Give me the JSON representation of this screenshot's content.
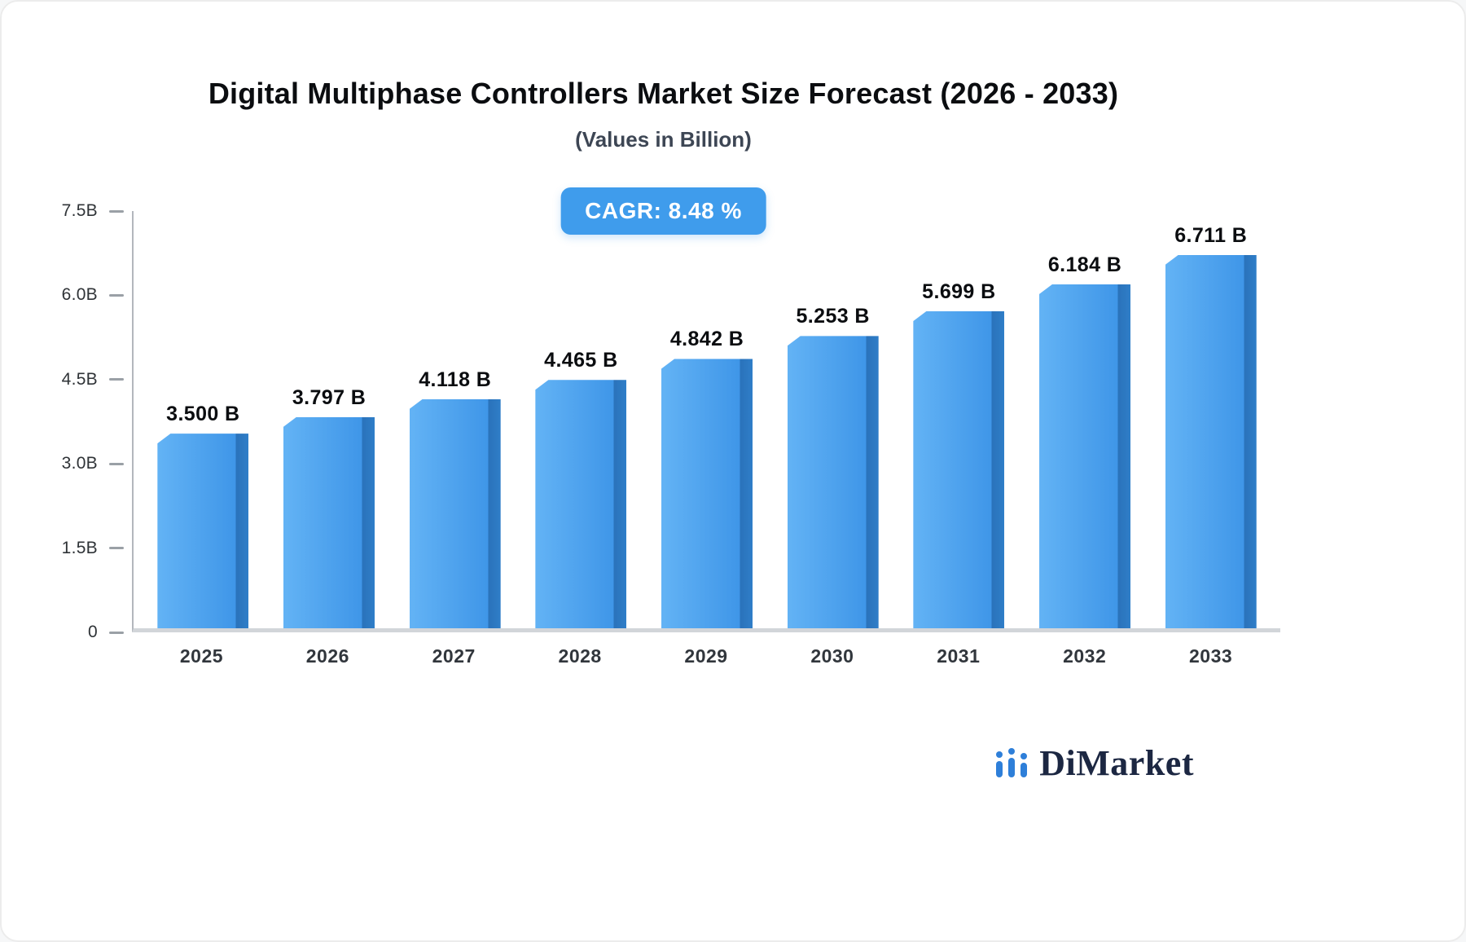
{
  "chart_data": {
    "type": "bar",
    "title": "Digital Multiphase Controllers Market Size Forecast (2026 - 2033)",
    "subtitle": "(Values in Billion)",
    "badge": "CAGR: 8.48 %",
    "categories": [
      "2025",
      "2026",
      "2027",
      "2028",
      "2029",
      "2030",
      "2031",
      "2032",
      "2033"
    ],
    "values": [
      3.5,
      3.797,
      4.118,
      4.465,
      4.842,
      5.253,
      5.699,
      6.184,
      6.711
    ],
    "value_labels": [
      "3.500 B",
      "3.797 B",
      "4.118 B",
      "4.465 B",
      "4.842 B",
      "5.253 B",
      "5.699 B",
      "6.184 B",
      "6.711 B"
    ],
    "xlabel": "",
    "ylabel": "",
    "ylim": [
      0,
      7.5
    ],
    "yticks": [
      0,
      1.5,
      3.0,
      4.5,
      6.0,
      7.5
    ],
    "ytick_labels": [
      "0",
      "1.5B",
      "3.0B",
      "4.5B",
      "6.0B",
      "7.5B"
    ],
    "grid": false,
    "legend_position": "none",
    "colors": {
      "bar_light": "#63b3f5",
      "bar_main": "#3f96e8",
      "bar_side": "#2a72ba",
      "bar_side_edge": "#2f7ec8",
      "badge_bg": "#3f9cec",
      "badge_text": "#ffffff",
      "axis": "#b3b7bd",
      "baseline": "#d2d5d9"
    }
  },
  "logo": {
    "text": "DiMarket",
    "icon": "bar-chart-dots-icon",
    "icon_color": "#2e7fd9"
  }
}
